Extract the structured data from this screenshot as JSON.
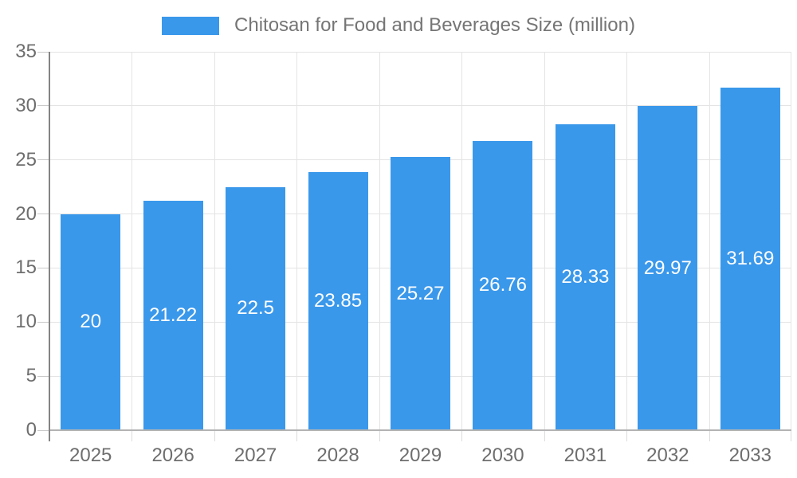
{
  "chart_data": {
    "type": "bar",
    "title": "",
    "legend": "Chitosan for Food and Beverages Size (million)",
    "legend_position": "top",
    "categories": [
      "2025",
      "2026",
      "2027",
      "2028",
      "2029",
      "2030",
      "2031",
      "2032",
      "2033"
    ],
    "values": [
      20,
      21.22,
      22.5,
      23.85,
      25.27,
      26.76,
      28.33,
      29.97,
      31.69
    ],
    "bar_labels": [
      "20",
      "21.22",
      "22.5",
      "23.85",
      "25.27",
      "26.76",
      "28.33",
      "29.97",
      "31.69"
    ],
    "xlabel": "",
    "ylabel": "",
    "yticks": [
      0,
      5,
      10,
      15,
      20,
      25,
      30,
      35
    ],
    "ylim": [
      0,
      35
    ],
    "grid": true,
    "colors": {
      "bar": "#3A98EB",
      "grid": "#E4E4E4",
      "axis_x": "#B3B3B3",
      "axis_y": "#848484",
      "y_tick": "#C9C9C9",
      "x_tick": "#DCDCDC",
      "tick_text": "#6E6E6E",
      "legend_text": "#757575",
      "bar_label_text": "#FFFFFF",
      "background": "#FFFFFF"
    }
  }
}
